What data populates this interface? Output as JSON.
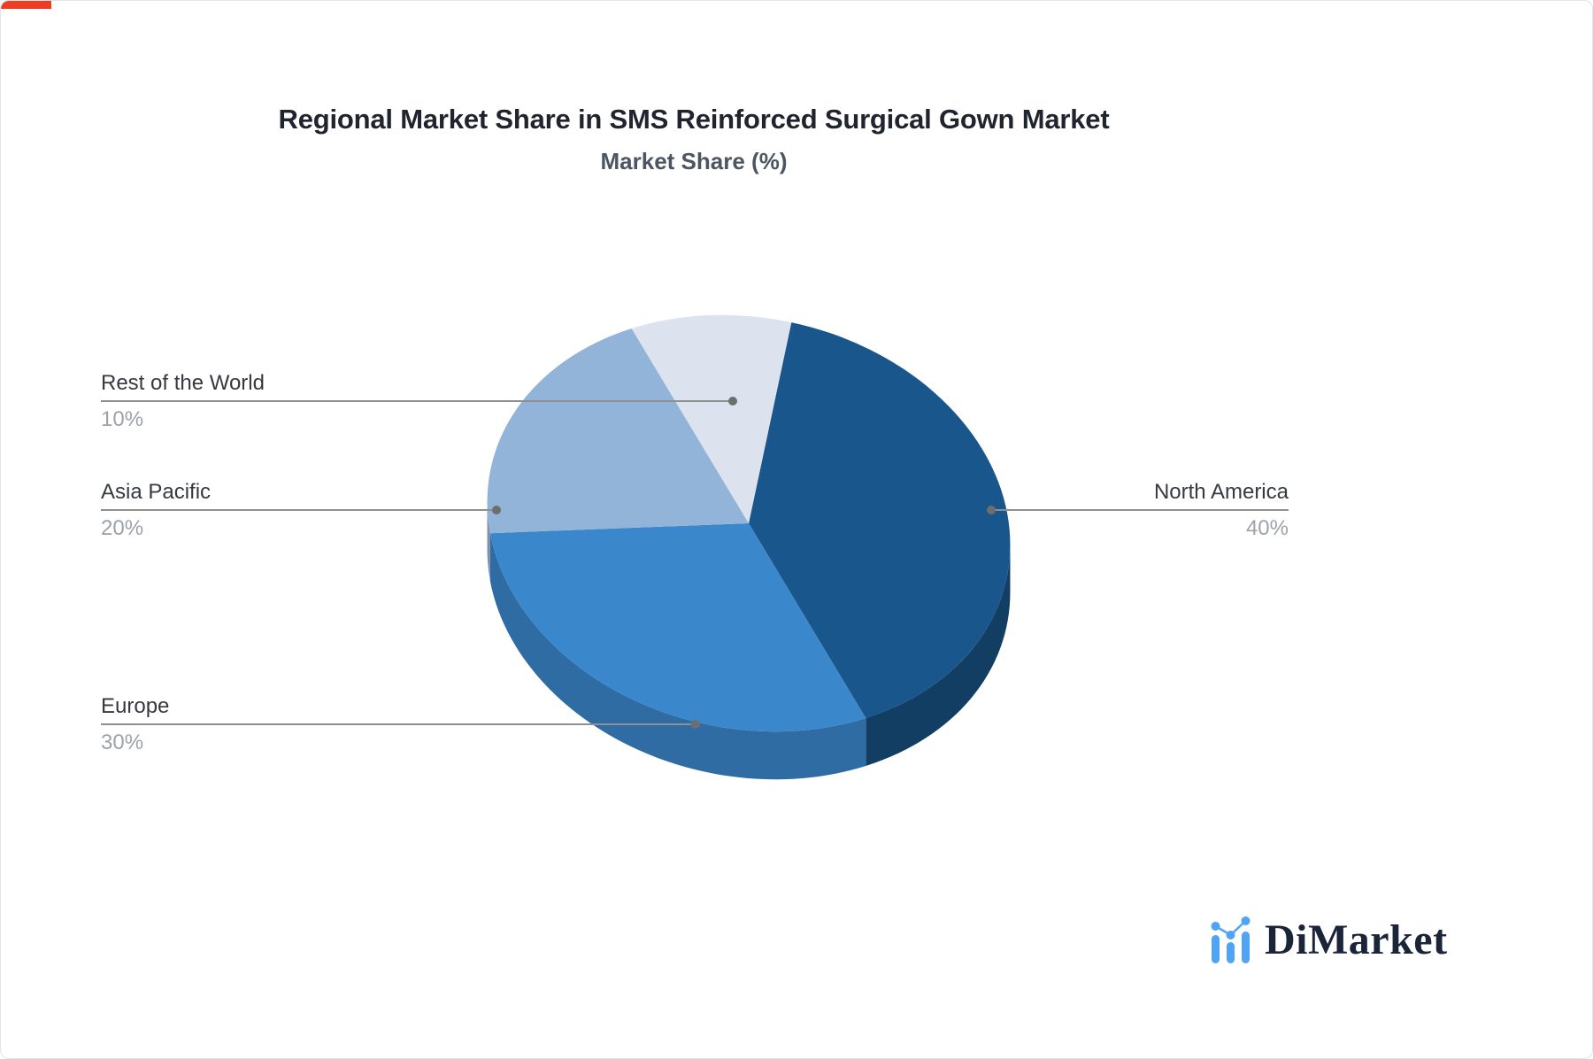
{
  "page": {
    "background": "#FFFFFF",
    "corner_marker_color": "#EF3C25"
  },
  "header": {
    "title": "Regional Market Share in SMS Reinforced Surgical Gown Market",
    "subtitle": "Market Share (%)"
  },
  "chart_data": {
    "type": "pie",
    "style_3d": true,
    "title": "Regional Market Share in SMS Reinforced Surgical Gown Market",
    "subtitle": "Market Share (%)",
    "unit": "%",
    "start_angle_deg": 0,
    "direction": "clockwise",
    "legend_position": "none",
    "labels": "leader-line callouts",
    "slices": [
      {
        "label": "North America",
        "value": 40,
        "display_value": "40%",
        "color": "#19568C",
        "side_color": "#123E63",
        "callout_side": "right"
      },
      {
        "label": "Europe",
        "value": 30,
        "display_value": "30%",
        "color": "#3A87CC",
        "side_color": "#2E6CA3",
        "callout_side": "left"
      },
      {
        "label": "Asia Pacific",
        "value": 20,
        "display_value": "20%",
        "color": "#92B4D8",
        "side_color": "#7C92AC",
        "callout_side": "left"
      },
      {
        "label": "Rest of the World",
        "value": 10,
        "display_value": "10%",
        "color": "#DCE3EE",
        "side_color": "#AAB2C0",
        "callout_side": "left"
      }
    ],
    "leader_line_color": "#8F8F8F",
    "leader_dot_color": "#6E6E6E",
    "label_color": "#36393F",
    "value_color": "#9CA2A9"
  },
  "branding": {
    "logo_text": "DiMarket",
    "logo_icon": "bar-line-chart-icon",
    "logo_text_color": "#1B2539",
    "logo_accent_color": "#4FA4F3"
  }
}
